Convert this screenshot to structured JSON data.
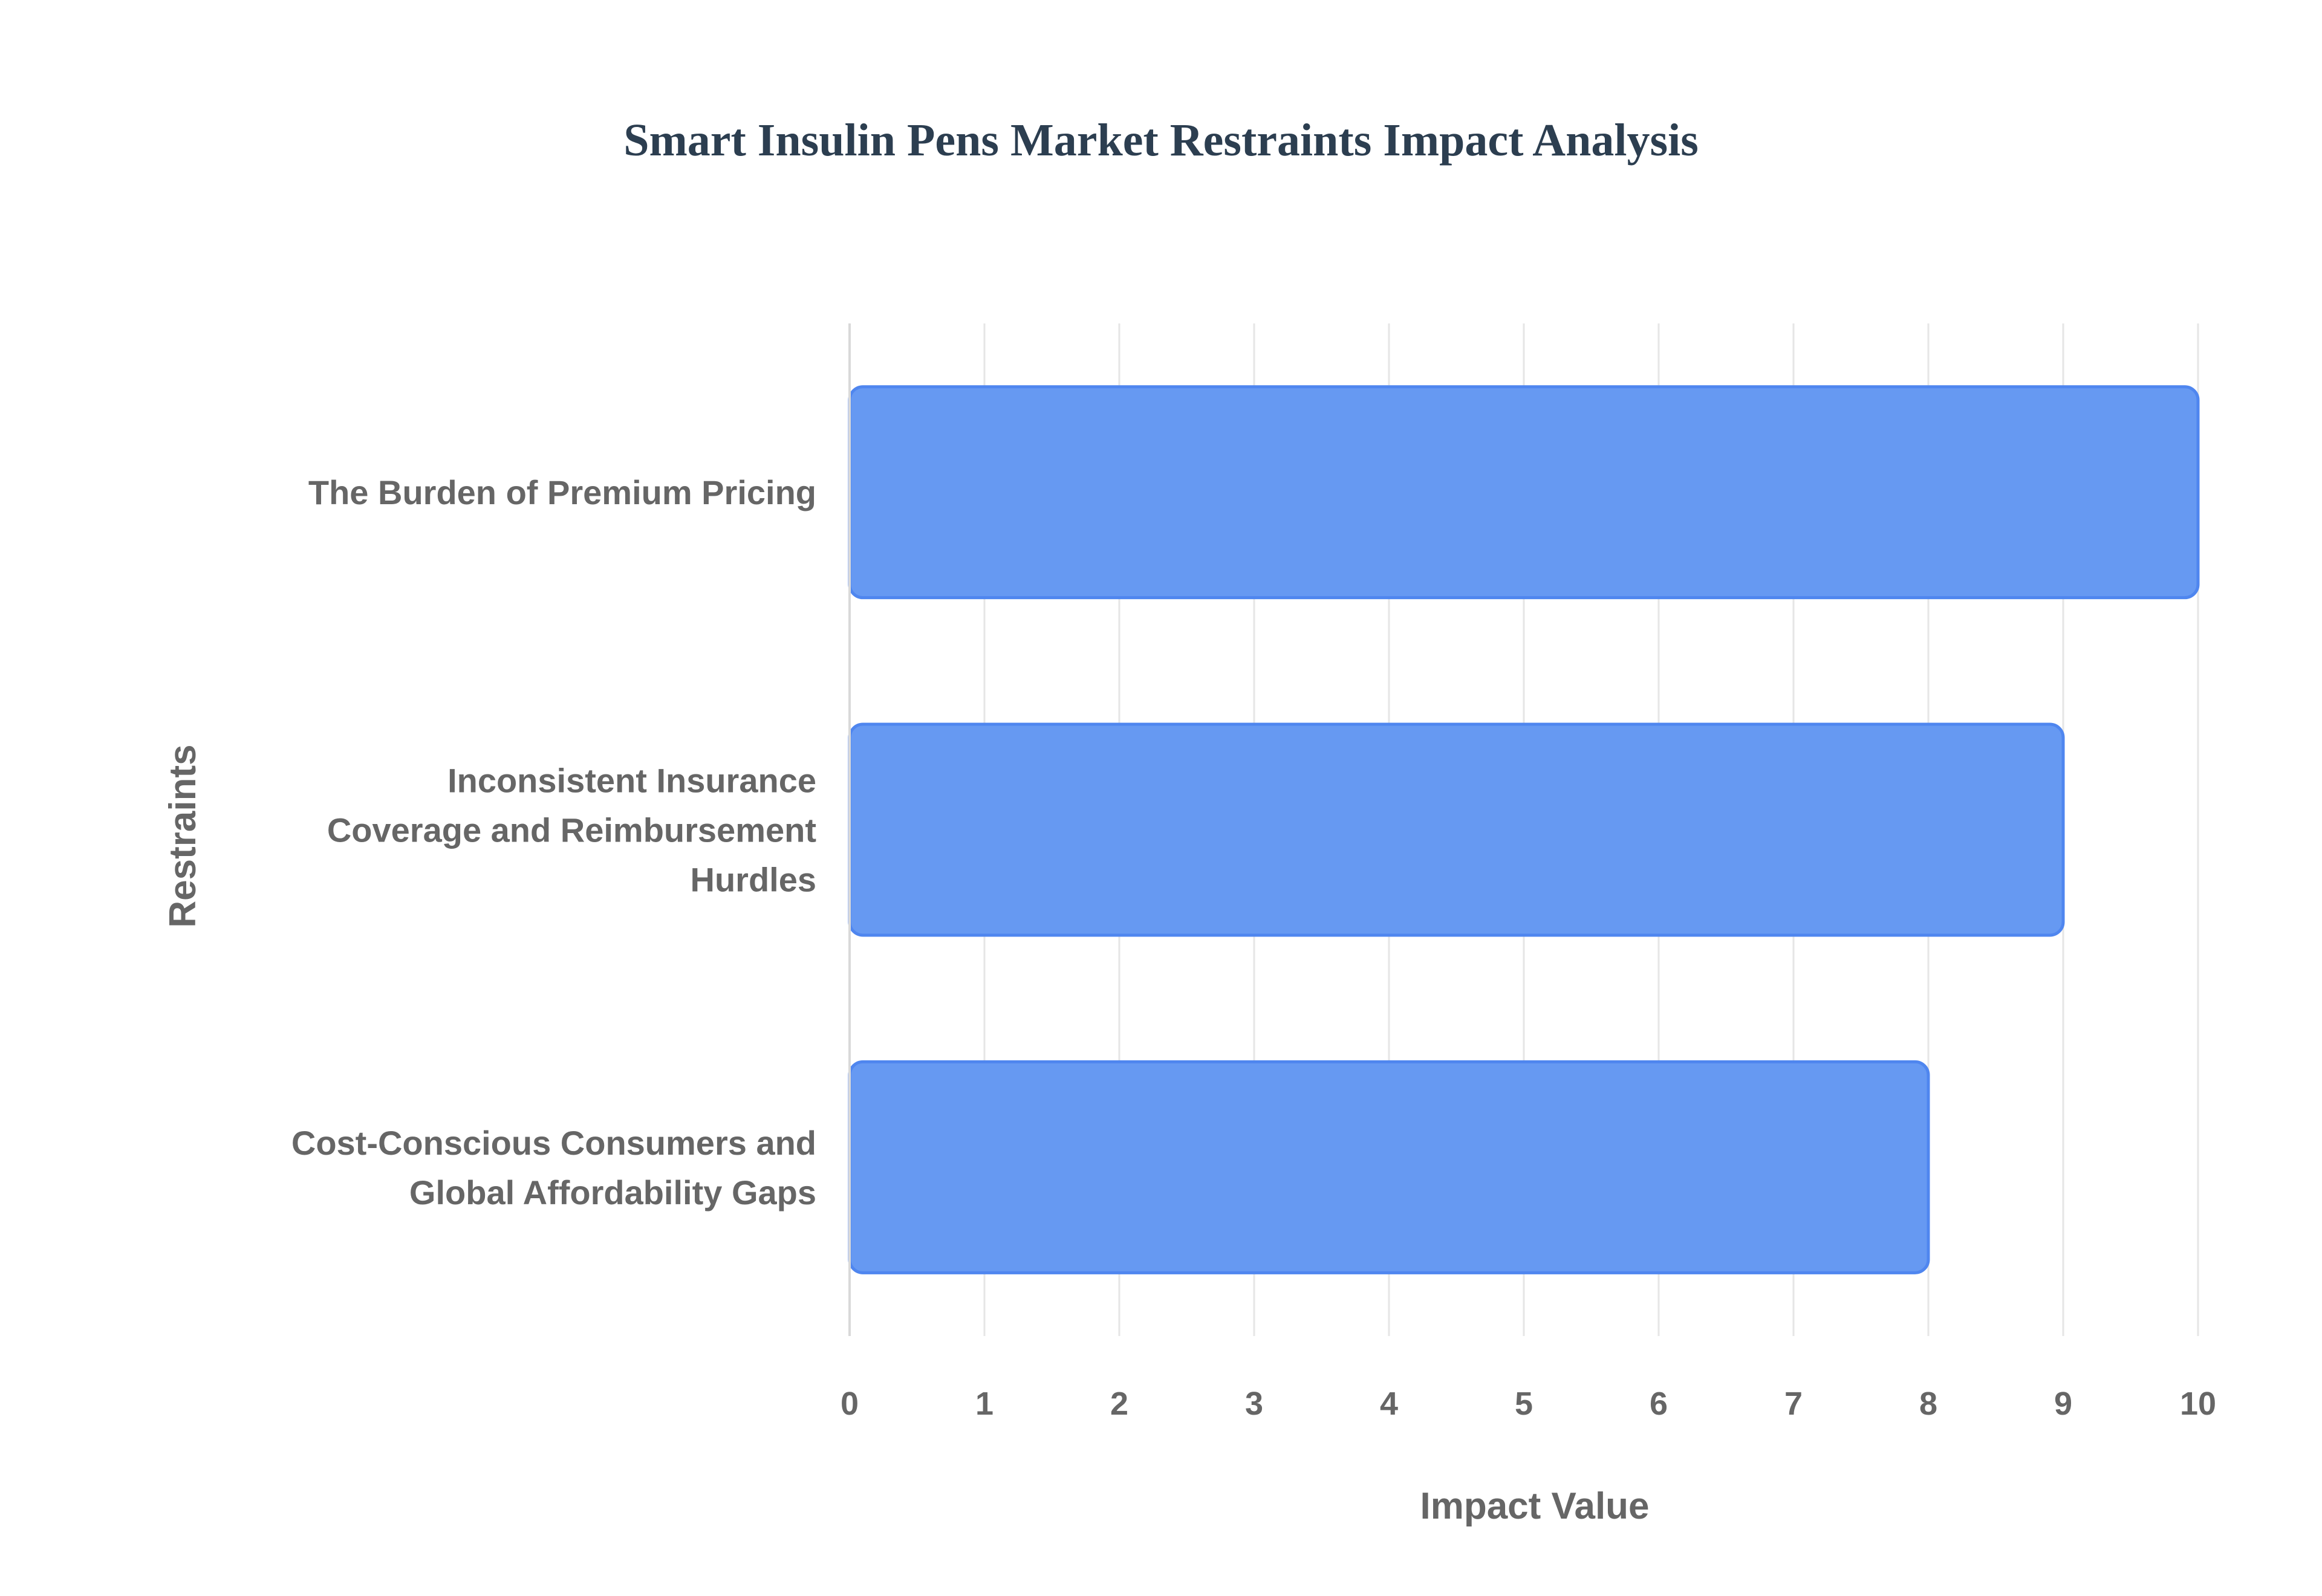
{
  "chart_data": {
    "type": "bar",
    "orientation": "horizontal",
    "title": "Smart Insulin Pens Market Restraints Impact Analysis",
    "xlabel": "Impact Value",
    "ylabel": "Restraints",
    "xlim": [
      0,
      10
    ],
    "x_ticks": [
      0,
      1,
      2,
      3,
      4,
      5,
      6,
      7,
      8,
      9,
      10
    ],
    "grid": true,
    "legend": "none",
    "categories": [
      [
        "The Burden of Premium Pricing"
      ],
      [
        "Inconsistent Insurance",
        "Coverage and Reimbursement",
        "Hurdles"
      ],
      [
        "Cost-Conscious Consumers and",
        "Global Affordability Gaps"
      ]
    ],
    "values": [
      10,
      9,
      8
    ],
    "bar_color": "#6699f2",
    "bar_border_color": "#4f86ef"
  }
}
